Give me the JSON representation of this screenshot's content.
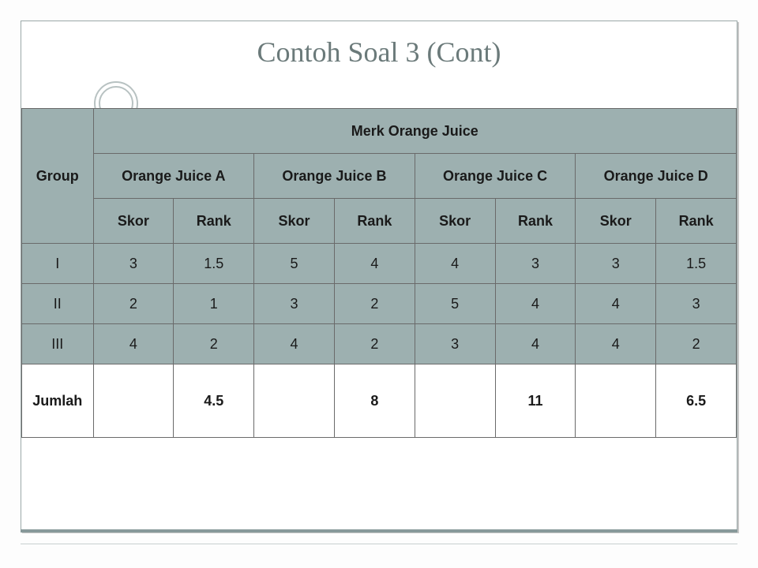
{
  "title": "Contoh Soal 3 (Cont)",
  "table": {
    "group_label": "Group",
    "super_header": "Merk Orange Juice",
    "brands": [
      "Orange Juice A",
      "Orange Juice B",
      "Orange Juice C",
      "Orange Juice D"
    ],
    "sub": {
      "skor": "Skor",
      "rank": "Rank"
    },
    "rows": [
      {
        "label": "I",
        "cells": [
          "3",
          "1.5",
          "5",
          "4",
          "4",
          "3",
          "3",
          "1.5"
        ]
      },
      {
        "label": "II",
        "cells": [
          "2",
          "1",
          "3",
          "2",
          "5",
          "4",
          "4",
          "3"
        ]
      },
      {
        "label": "III",
        "cells": [
          "4",
          "2",
          "4",
          "2",
          "3",
          "4",
          "4",
          "2"
        ]
      }
    ],
    "jumlah": {
      "label": "Jumlah",
      "cells": [
        "",
        "4.5",
        "",
        "8",
        "",
        "11",
        "",
        "6.5"
      ]
    }
  }
}
